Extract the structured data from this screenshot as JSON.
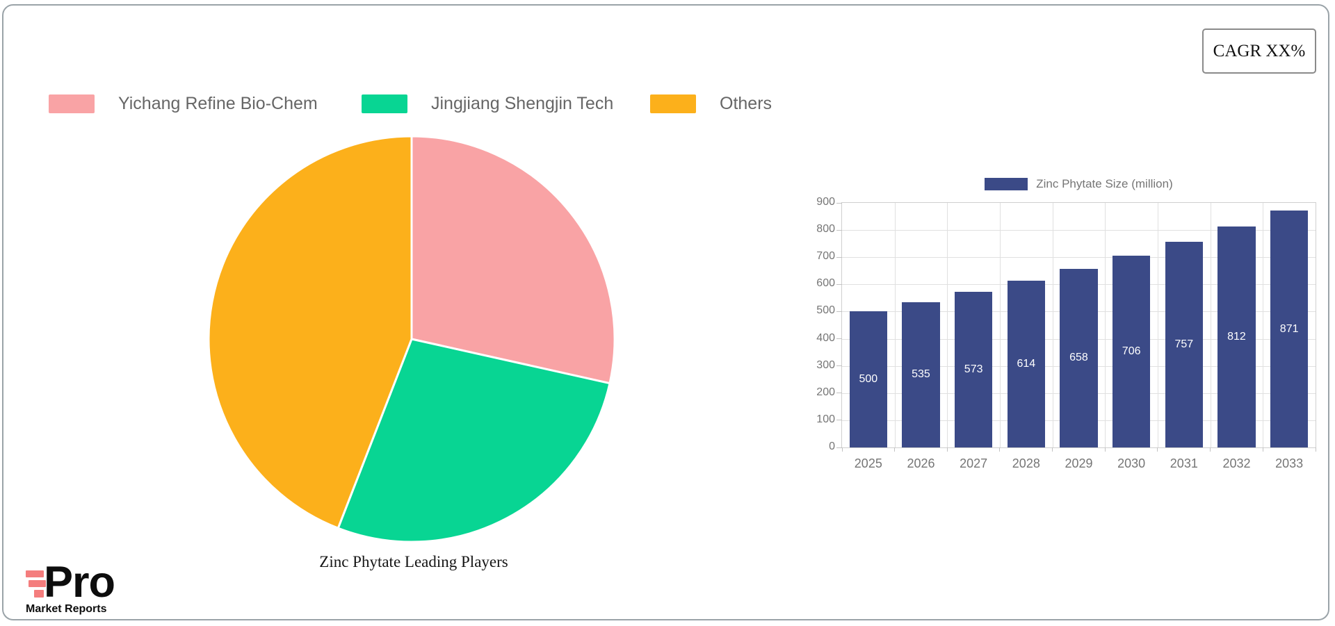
{
  "cagr_box": {
    "label": "CAGR XX%"
  },
  "pie_section": {
    "title": "Zinc Phytate Leading Players",
    "legend": [
      {
        "label": "Yichang Refine Bio-Chem",
        "color": "#f9a3a5"
      },
      {
        "label": "Jingjiang Shengjin Tech",
        "color": "#08d593"
      },
      {
        "label": "Others",
        "color": "#fcb01b"
      }
    ]
  },
  "bar_section": {
    "legend_label": "Zinc Phytate Size (million)",
    "bar_color": "#3b4a87"
  },
  "logo": {
    "word": "Pro",
    "tagline": "Market Reports",
    "accent_color": "#f47d7d",
    "text_color": "#0d0d0d"
  },
  "chart_data": [
    {
      "type": "pie",
      "title": "Zinc Phytate Leading Players",
      "labels": [
        "Yichang Refine Bio-Chem",
        "Jingjiang Shengjin Tech",
        "Others"
      ],
      "values": [
        28.5,
        27.4,
        44.1
      ],
      "colors": [
        "#f9a3a5",
        "#08d593",
        "#fcb01b"
      ],
      "start_angle_deg": 0,
      "direction": "clockwise",
      "legend_position": "top"
    },
    {
      "type": "bar",
      "title": "Zinc Phytate Size (million)",
      "categories": [
        "2025",
        "2026",
        "2027",
        "2028",
        "2029",
        "2030",
        "2031",
        "2032",
        "2033"
      ],
      "values": [
        500,
        535,
        573,
        614,
        658,
        706,
        757,
        812,
        871
      ],
      "xlabel": "",
      "ylabel": "",
      "ylim": [
        0,
        900
      ],
      "ytick_step": 100,
      "grid": true,
      "bar_color": "#3b4a87",
      "value_label_color": "#ffffff",
      "legend_position": "top"
    }
  ]
}
